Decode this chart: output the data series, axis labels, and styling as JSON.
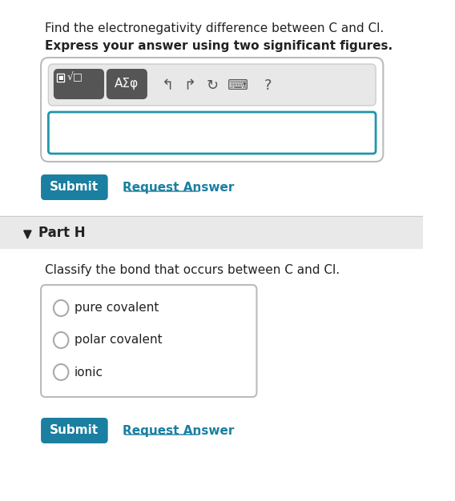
{
  "bg_color": "#f5f5f5",
  "white": "#ffffff",
  "teal": "#1a7fa0",
  "light_gray": "#e8e8e8",
  "mid_gray": "#cccccc",
  "dark_gray": "#555555",
  "text_dark": "#222222",
  "text_medium": "#444444",
  "border_gray": "#bbbbbb",
  "input_border": "#2196a8",
  "toolbar_bg": "#e0e0e0",
  "toolbar_btn_bg": "#888888",
  "toolbar_btn_bg2": "#999999",
  "part_h_bg": "#e9e9e9",
  "radio_border": "#aaaaaa",
  "question1": "Find the electronegativity difference between C and Cl.",
  "question1_bold": "Express your answer using two significant figures.",
  "part_label": "Part H",
  "question2": "Classify the bond that occurs between C and Cl.",
  "option1": "pure covalent",
  "option2": "polar covalent",
  "option3": "ionic",
  "submit_text": "Submit",
  "request_text": "Request Answer",
  "toolbar_label1": "AΣφ",
  "toolbar_symbols": [
    "↰",
    "↱",
    "↻",
    "⌨",
    "?"
  ]
}
